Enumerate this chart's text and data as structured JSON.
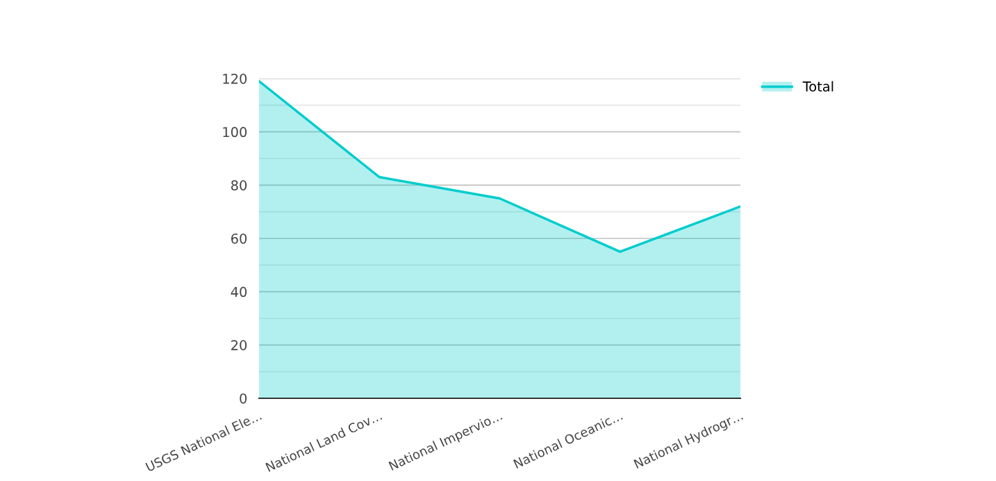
{
  "chart_data": {
    "type": "area",
    "categories": [
      "USGS National Ele…",
      "National Land Cov…",
      "National Impervio…",
      "National Oceanic…",
      "National Hydrogr…"
    ],
    "series": [
      {
        "name": "Total",
        "color": "#00cccc",
        "values": [
          119,
          83,
          75,
          55,
          72
        ]
      }
    ],
    "ylim": [
      0,
      120
    ],
    "yticks": [
      0,
      {
        "value": 10,
        "label": null
      },
      20,
      {
        "value": 30,
        "label": null
      },
      40,
      {
        "value": 50,
        "label": null
      },
      60,
      {
        "value": 70,
        "label": null
      },
      80,
      {
        "value": 90,
        "label": null
      },
      100,
      {
        "value": 110,
        "label": null
      },
      120
    ],
    "grid": "y",
    "legend": "top right"
  }
}
